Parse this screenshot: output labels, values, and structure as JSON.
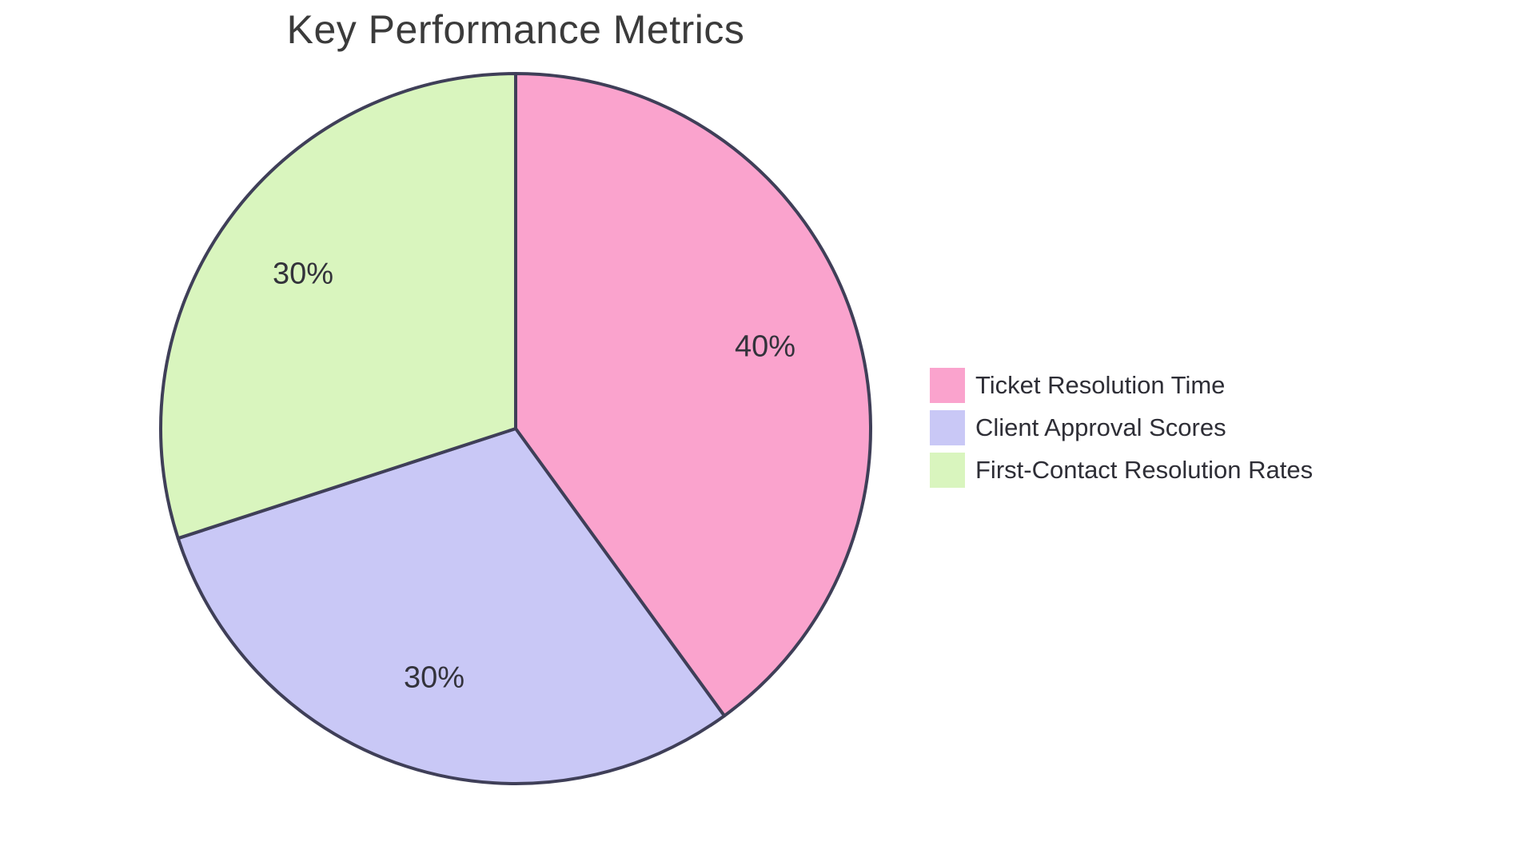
{
  "chart_data": {
    "type": "pie",
    "title": "Key Performance Metrics",
    "slices": [
      {
        "label": "Ticket Resolution Time",
        "value": 40,
        "pct_label": "40%",
        "color": "#faa3cd"
      },
      {
        "label": "Client Approval Scores",
        "value": 30,
        "pct_label": "30%",
        "color": "#c9c8f6"
      },
      {
        "label": "First-Contact Resolution Rates",
        "value": 30,
        "pct_label": "30%",
        "color": "#d9f5be"
      }
    ],
    "start_angle": "12 o'clock",
    "direction": "clockwise",
    "legend_position": "right-middle",
    "colors": {
      "slice_stroke": "#3f3f58",
      "title_text": "#3b3b3b",
      "slice_label_text": "#33333b",
      "legend_text": "#2e2e36",
      "background": "#ffffff"
    }
  }
}
